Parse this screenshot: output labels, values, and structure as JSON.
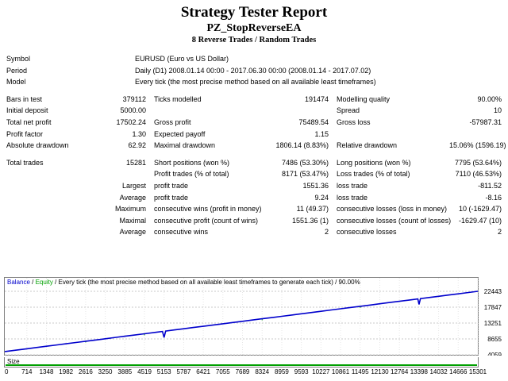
{
  "header": {
    "title": "Strategy Tester Report",
    "ea_name": "PZ_StopReverseEA",
    "subtitle": "8 Reverse Trades / Random Trades"
  },
  "info_rows": [
    {
      "label": "Symbol",
      "value": "EURUSD (Euro vs US Dollar)"
    },
    {
      "label": "Period",
      "value": "Daily (D1) 2008.01.14 00:00 - 2017.06.30 00:00 (2008.01.14 - 2017.07.02)"
    },
    {
      "label": "Model",
      "value": "Every tick (the most precise method based on all available least timeframes)"
    }
  ],
  "stats_groups": [
    {
      "rows": [
        [
          "Bars in test",
          "379112",
          "Ticks modelled",
          "191474",
          "Modelling quality",
          "90.00%"
        ],
        [
          "Initial deposit",
          "5000.00",
          "",
          "",
          "Spread",
          "10"
        ],
        [
          "Total net profit",
          "17502.24",
          "Gross profit",
          "75489.54",
          "Gross loss",
          "-57987.31"
        ],
        [
          "Profit factor",
          "1.30",
          "Expected payoff",
          "1.15",
          "",
          ""
        ],
        [
          "Absolute drawdown",
          "62.92",
          "Maximal drawdown",
          "1806.14 (8.83%)",
          "Relative drawdown",
          "15.06% (1596.19)"
        ]
      ]
    },
    {
      "rows": [
        [
          "Total trades",
          "15281",
          "Short positions (won %)",
          "7486 (53.30%)",
          "Long positions (won %)",
          "7795 (53.64%)"
        ],
        [
          "",
          "",
          "Profit trades (% of total)",
          "8171 (53.47%)",
          "Loss trades (% of total)",
          "7110 (46.53%)"
        ],
        [
          "",
          "Largest",
          "profit trade",
          "1551.36",
          "loss trade",
          "-811.52"
        ],
        [
          "",
          "Average",
          "profit trade",
          "9.24",
          "loss trade",
          "-8.16"
        ],
        [
          "",
          "Maximum",
          "consecutive wins (profit in money)",
          "11 (49.37)",
          "consecutive losses (loss in money)",
          "10 (-1629.47)"
        ],
        [
          "",
          "Maximal",
          "consecutive profit (count of wins)",
          "1551.36 (1)",
          "consecutive losses (count of losses)",
          "-1629.47 (10)"
        ],
        [
          "",
          "Average",
          "consecutive wins",
          "2",
          "consecutive losses",
          "2"
        ]
      ]
    }
  ],
  "chart_data": {
    "type": "line",
    "title": "Balance / Equity curve",
    "legend": {
      "balance": "Balance",
      "separator": " / ",
      "equity": "Equity",
      "rest": " / Every tick (the most precise method based on all available least timeframes to generate each tick) / 90.00%"
    },
    "colors": {
      "balance": "#0000cc",
      "equity": "#00a000",
      "grid": "#c9c9c9",
      "border": "#7f7f7f"
    },
    "x_range": [
      0,
      15301
    ],
    "y_range": [
      4059,
      22443
    ],
    "y_ticks": [
      22443,
      17847,
      13251,
      8655,
      4059
    ],
    "x_ticks": [
      0,
      714,
      1348,
      1982,
      2616,
      3250,
      3885,
      4519,
      5153,
      5787,
      6421,
      7055,
      7689,
      8324,
      8959,
      9593,
      10227,
      10861,
      11495,
      12130,
      12764,
      13398,
      14032,
      14666,
      15301
    ],
    "size_pane_label": "Size",
    "series": [
      {
        "name": "Balance",
        "color": "#0000cc",
        "points": [
          [
            0,
            5000
          ],
          [
            300,
            5340
          ],
          [
            714,
            5814
          ],
          [
            1000,
            6140
          ],
          [
            1348,
            6537
          ],
          [
            1700,
            6940
          ],
          [
            1982,
            7260
          ],
          [
            2300,
            7620
          ],
          [
            2616,
            7982
          ],
          [
            2950,
            8363
          ],
          [
            3250,
            8705
          ],
          [
            3600,
            9104
          ],
          [
            3885,
            9429
          ],
          [
            4200,
            9788
          ],
          [
            4519,
            10152
          ],
          [
            4900,
            10586
          ],
          [
            5100,
            10815
          ],
          [
            5153,
            9069
          ],
          [
            5205,
            10930
          ],
          [
            5500,
            11271
          ],
          [
            5787,
            11598
          ],
          [
            6100,
            11955
          ],
          [
            6421,
            12320
          ],
          [
            6750,
            12696
          ],
          [
            7055,
            13043
          ],
          [
            7400,
            13436
          ],
          [
            7689,
            13766
          ],
          [
            8000,
            14120
          ],
          [
            8324,
            14489
          ],
          [
            8700,
            14917
          ],
          [
            8959,
            15213
          ],
          [
            9300,
            15602
          ],
          [
            9593,
            15936
          ],
          [
            9900,
            16286
          ],
          [
            10227,
            16659
          ],
          [
            10560,
            17038
          ],
          [
            10861,
            17381
          ],
          [
            11200,
            17768
          ],
          [
            11495,
            18104
          ],
          [
            11800,
            18451
          ],
          [
            12130,
            18828
          ],
          [
            12450,
            19192
          ],
          [
            12764,
            19551
          ],
          [
            13100,
            19934
          ],
          [
            13360,
            20231
          ],
          [
            13398,
            18645
          ],
          [
            13445,
            20330
          ],
          [
            13750,
            20675
          ],
          [
            14032,
            20996
          ],
          [
            14350,
            21359
          ],
          [
            14666,
            21719
          ],
          [
            15000,
            22100
          ],
          [
            15301,
            22443
          ]
        ]
      }
    ],
    "equity_spikes": [
      [
        2616,
        7982,
        7650
      ],
      [
        4519,
        10152,
        9700
      ],
      [
        8324,
        14489,
        14050
      ],
      [
        11495,
        18104,
        17650
      ]
    ]
  }
}
